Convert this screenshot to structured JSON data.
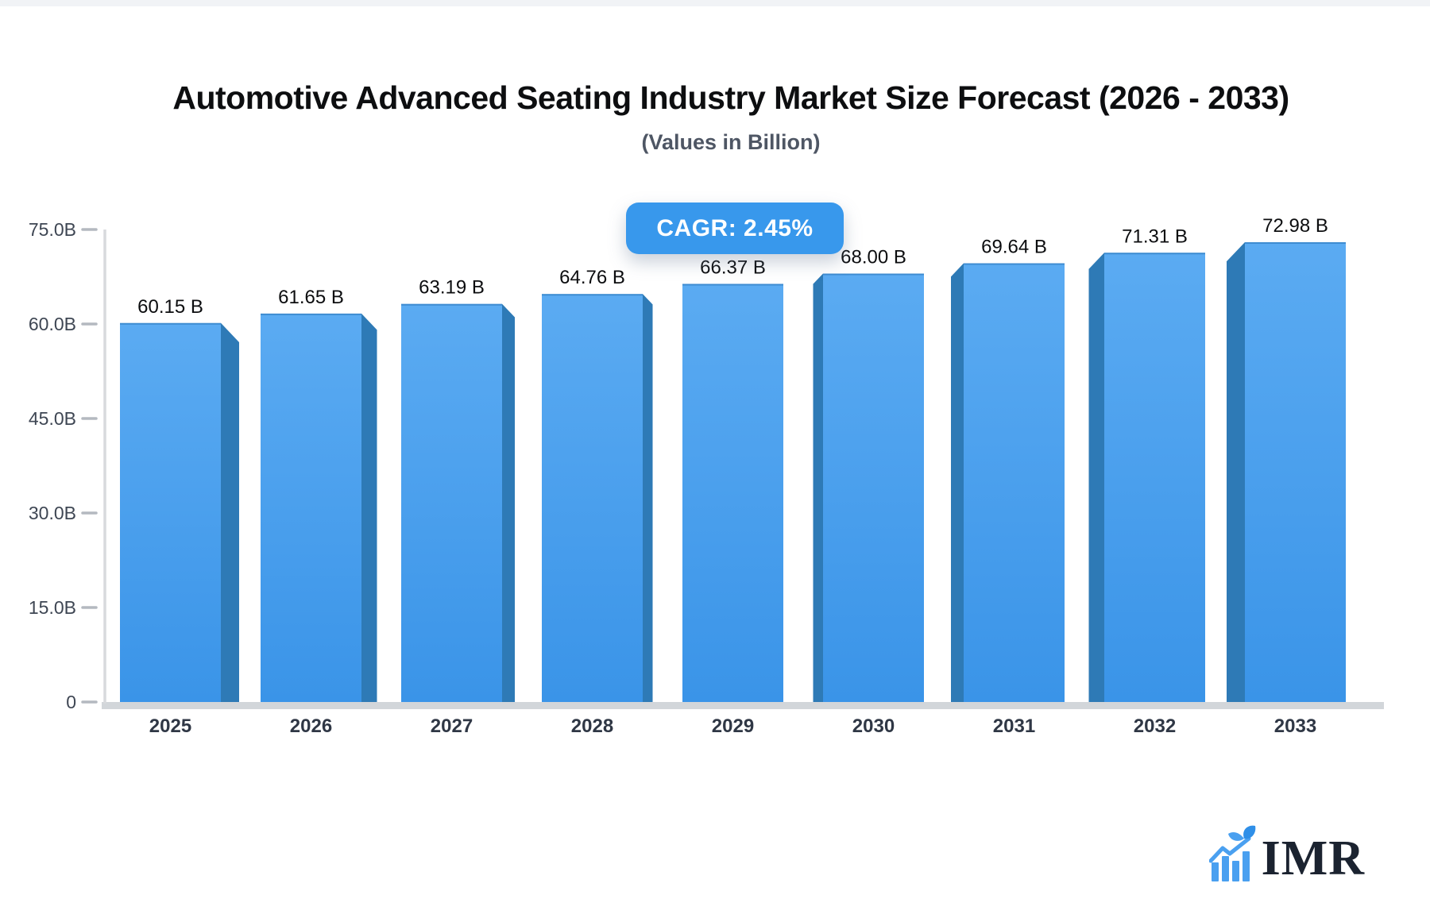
{
  "header": {
    "title": "Automotive Advanced Seating Industry Market Size Forecast (2026 - 2033)",
    "subtitle": "(Values in Billion)"
  },
  "badge": {
    "label": "CAGR: 2.45%",
    "bg_color": "#3898ec",
    "text_color": "#ffffff"
  },
  "chart_data": {
    "type": "bar",
    "title": "Automotive Advanced Seating Industry Market Size Forecast (2026 - 2033)",
    "subtitle": "(Values in Billion)",
    "categories": [
      "2025",
      "2026",
      "2027",
      "2028",
      "2029",
      "2030",
      "2031",
      "2032",
      "2033"
    ],
    "values": [
      60.15,
      61.65,
      63.19,
      64.76,
      66.37,
      68.0,
      69.64,
      71.31,
      72.98
    ],
    "value_labels": [
      "60.15 B",
      "61.65 B",
      "63.19 B",
      "64.76 B",
      "66.37 B",
      "68.00 B",
      "69.64 B",
      "71.31 B",
      "72.98 B"
    ],
    "xlabel": "",
    "ylabel": "",
    "ylim": [
      0,
      75
    ],
    "yticks": [
      {
        "value": 0,
        "label": "0"
      },
      {
        "value": 15,
        "label": "15.0B"
      },
      {
        "value": 30,
        "label": "30.0B"
      },
      {
        "value": 45,
        "label": "45.0B"
      },
      {
        "value": 60,
        "label": "60.0B"
      },
      {
        "value": 75,
        "label": "75.0B"
      }
    ],
    "grid": false,
    "legend": "none",
    "style": "3d-perspective-columns",
    "colors": {
      "bar_front_top": "#5babf2",
      "bar_front_bottom": "#3a94e8",
      "bar_side": "#2e7ab6",
      "bar_top_edge": "#2f7cc0",
      "axis_line": "#d8dadd",
      "baseline_strip": "#d2d6da",
      "tick_dash": "#b4b9c0",
      "ytick_text": "#3e4653",
      "xtick_text": "#2f3745",
      "data_label_text": "#0c0d0f"
    }
  },
  "logo": {
    "text": "IMR",
    "icon": "bar-chart-growth-leaf-icon",
    "icon_color": "#4aa0f0",
    "text_color": "#1b2330"
  }
}
